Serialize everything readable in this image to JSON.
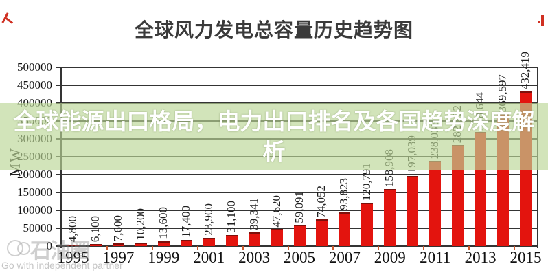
{
  "title": "全球风力发电总容量历史趋势图",
  "overlay_banner": {
    "text": "全球能源出口格局，电力出口排名及各国趋势深度解析",
    "background_color": "#bad696",
    "text_color": "#ffffff"
  },
  "chart_data": {
    "type": "bar",
    "title": "全球风力发电总容量历史趋势图",
    "xlabel": "",
    "ylabel": "MW",
    "ylim": [
      0,
      500000
    ],
    "ytick_step": 50000,
    "ytick_labels": [
      "0",
      "50000",
      "100000",
      "150000",
      "200000",
      "250000",
      "300000",
      "350000",
      "400000",
      "450000",
      "500000"
    ],
    "x": [
      1995,
      1996,
      1997,
      1998,
      1999,
      2000,
      2001,
      2002,
      2003,
      2004,
      2005,
      2006,
      2007,
      2008,
      2009,
      2010,
      2011,
      2012,
      2013,
      2014,
      2015
    ],
    "xtick_labels": [
      "1995",
      "1997",
      "1999",
      "2001",
      "2003",
      "2005",
      "2007",
      "2009",
      "2011",
      "2013",
      "2015"
    ],
    "values": [
      4800,
      6100,
      7600,
      10200,
      13600,
      17400,
      23900,
      31100,
      39341,
      47620,
      59091,
      74052,
      93823,
      120791,
      158908,
      197039,
      238035,
      282132,
      318644,
      369597,
      432419
    ],
    "value_labels": [
      "4,800",
      "6,100",
      "7,600",
      "10,200",
      "13,600",
      "17,400",
      "23,900",
      "31,100",
      "39,341",
      "47,620",
      "59,091",
      "74,052",
      "93,823",
      "120,791",
      "158,908",
      "197,039",
      "238,035",
      "282,132",
      "318,644",
      "369,597",
      "432,419"
    ],
    "bar_color": "#e3140e",
    "grid": true,
    "legend_position": "none"
  },
  "watermark": {
    "brand": "石油圈",
    "tagline": "Go with independent partner"
  }
}
